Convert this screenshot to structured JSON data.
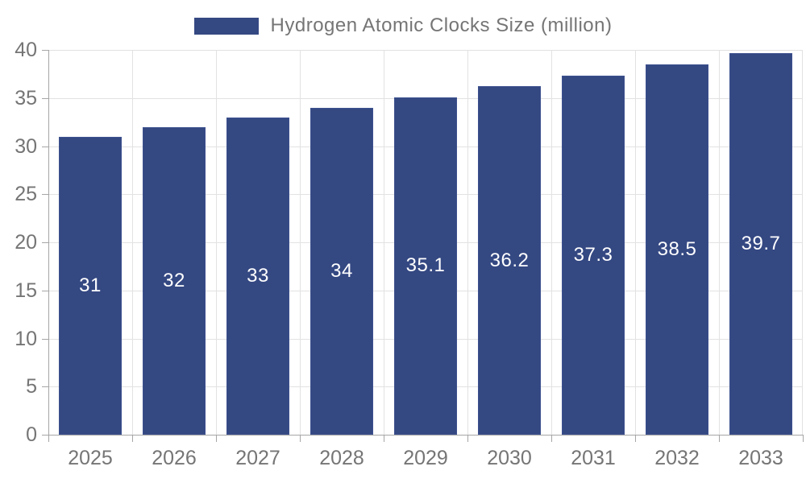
{
  "legend": {
    "label": "Hydrogen Atomic Clocks Size (million)"
  },
  "colors": {
    "bar": "#344882",
    "bar_border": "#3d518f",
    "grid": "#e2e2e2",
    "axis": "#a6a6a6",
    "tick_text": "#757575",
    "legend_text": "#757575",
    "value_label": "#ffffff",
    "background": "#ffffff"
  },
  "chart_data": {
    "type": "bar",
    "title": "Hydrogen Atomic Clocks Size (million)",
    "series_name": "Hydrogen Atomic Clocks Size (million)",
    "categories": [
      "2025",
      "2026",
      "2027",
      "2028",
      "2029",
      "2030",
      "2031",
      "2032",
      "2033"
    ],
    "values": [
      31,
      32,
      33,
      34,
      35.1,
      36.2,
      37.3,
      38.5,
      39.7
    ],
    "value_label_texts": [
      "31",
      "32",
      "33",
      "34",
      "35.1",
      "36.2",
      "37.3",
      "38.5",
      "39.7"
    ],
    "xlabel": "",
    "ylabel": "",
    "ylim": [
      0,
      40
    ],
    "yticks": [
      0,
      5,
      10,
      15,
      20,
      25,
      30,
      35,
      40
    ],
    "grid": true,
    "legend_position": "top",
    "value_label_position": "inside-center"
  }
}
